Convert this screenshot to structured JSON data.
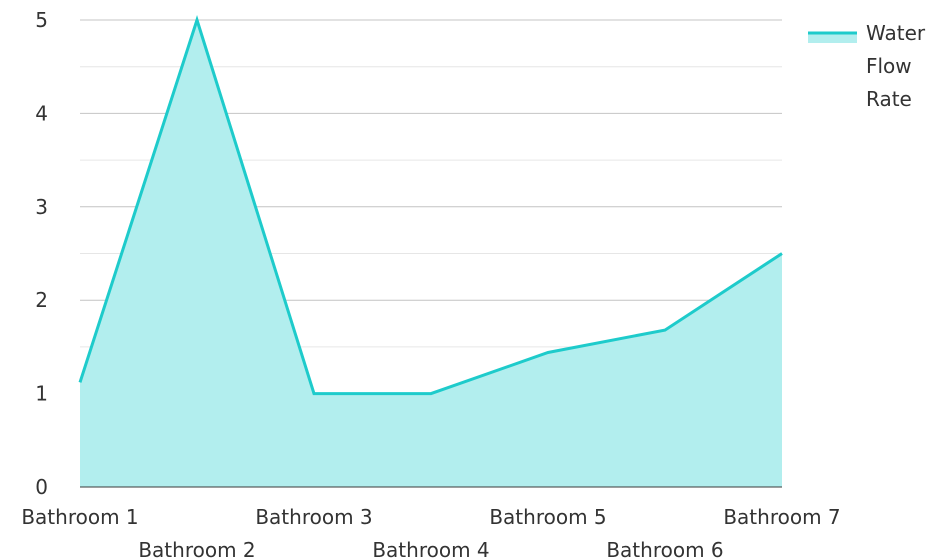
{
  "chart_data": {
    "type": "area",
    "title": "",
    "xlabel": "",
    "ylabel": "",
    "categories": [
      "Bathroom 1",
      "Bathroom 2",
      "Bathroom 3",
      "Bathroom 4",
      "Bathroom 5",
      "Bathroom 6",
      "Bathroom 7"
    ],
    "series": [
      {
        "name": "Water Flow Rate",
        "values": [
          1.12,
          5.0,
          1.0,
          1.0,
          1.44,
          1.68,
          2.5
        ]
      }
    ],
    "ylim": [
      0,
      5
    ],
    "yticks": [
      0,
      1,
      2,
      3,
      4,
      5
    ],
    "grid": true,
    "legend": {
      "position": "right",
      "lines": [
        "Water",
        "Flow",
        "Rate"
      ]
    },
    "colors": {
      "line": "#1ecbcb",
      "fill": "#b2eeee",
      "grid_major": "#c4c4c4",
      "grid_minor": "#e6e6e6",
      "axis": "#3a3a3a"
    }
  }
}
